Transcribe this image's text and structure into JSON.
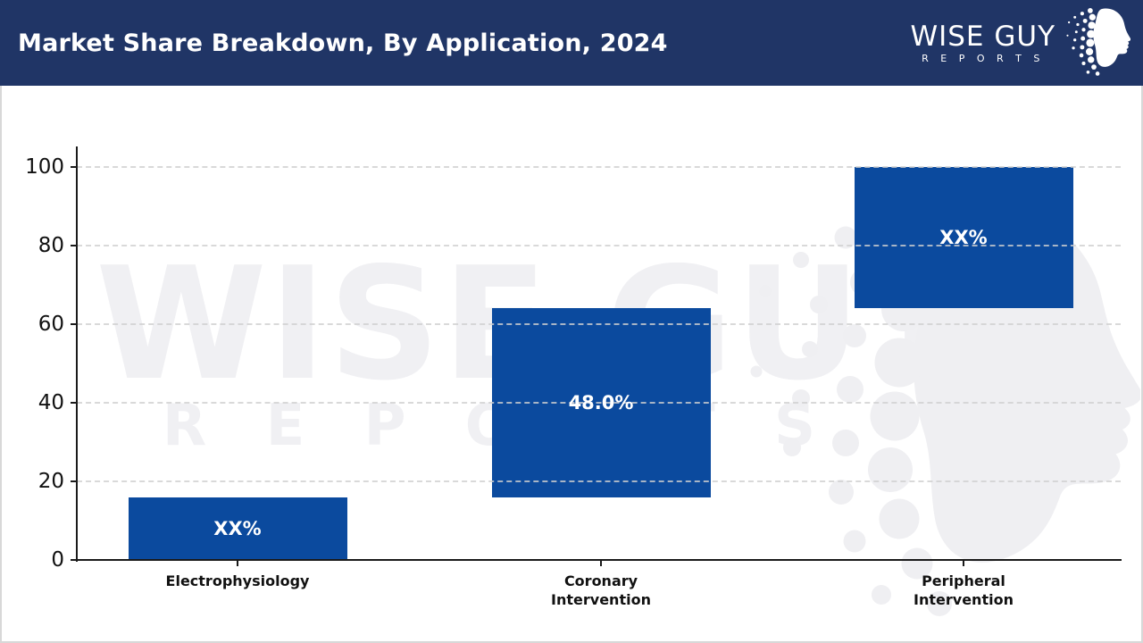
{
  "header": {
    "title": "Market Share Breakdown, By Application, 2024"
  },
  "logo": {
    "name": "WISE GUY",
    "subtitle": "R E P O R T S"
  },
  "watermark": {
    "line1": "WISE GUY",
    "line2": "R E P O R T S"
  },
  "chart_data": {
    "type": "bar",
    "subtype": "floating-segment-bars",
    "title": "Market Share Breakdown, By Application, 2024",
    "categories": [
      "Electrophysiology",
      "Coronary\nIntervention",
      "Peripheral\nIntervention"
    ],
    "segments": [
      {
        "category": "Electrophysiology",
        "start": 0,
        "end": 16,
        "label": "XX%"
      },
      {
        "category": "Coronary Intervention",
        "start": 16,
        "end": 64,
        "label": "48.0%"
      },
      {
        "category": "Peripheral Intervention",
        "start": 64,
        "end": 100,
        "label": "XX%"
      }
    ],
    "ylim": [
      0,
      100
    ],
    "yticks": [
      0,
      20,
      40,
      60,
      80,
      100
    ],
    "xlabel": "",
    "ylabel": "",
    "grid": "horizontal-dashed-above-bars",
    "legend": "none",
    "bar_color": "#0b4a9e",
    "bar_label_color": "#ffffff",
    "colors": {
      "header_bg": "#203566",
      "watermark": "#f0f0f3",
      "axis": "#1a1a1a",
      "gridline": "#d4d4d4"
    }
  }
}
